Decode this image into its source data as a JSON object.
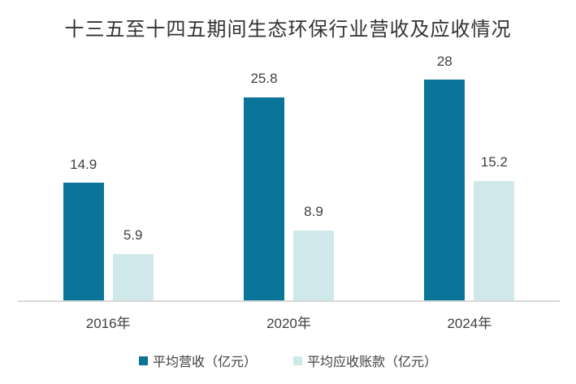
{
  "chart_data": {
    "type": "bar",
    "title": "十三五至十四五期间生态环保行业营收及应收情况",
    "categories": [
      "2016年",
      "2020年",
      "2024年"
    ],
    "series": [
      {
        "name": "平均营收（亿元）",
        "color": "#0a7599",
        "values": [
          14.9,
          25.8,
          28
        ]
      },
      {
        "name": "平均应收账款（亿元）",
        "color": "#cfe8ea",
        "values": [
          5.9,
          8.9,
          15.2
        ]
      }
    ],
    "value_labels": [
      "14.9",
      "5.9",
      "25.8",
      "8.9",
      "28",
      "15.2"
    ],
    "xlabel": "",
    "ylabel": "",
    "ylim": [
      0,
      30
    ],
    "grid": false,
    "legend_position": "bottom"
  },
  "styles": {
    "axis_line_color": "#d9d9d9",
    "title_color": "#333333",
    "label_color": "#404040",
    "background": "#ffffff"
  }
}
